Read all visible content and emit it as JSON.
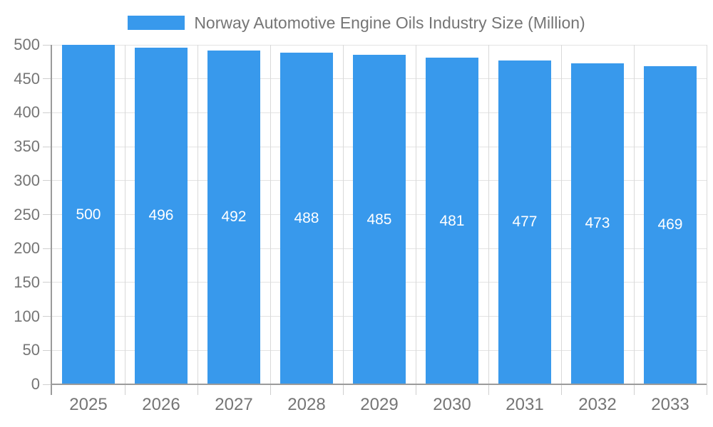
{
  "chart_data": {
    "type": "bar",
    "title": "",
    "legend": "Norway Automotive Engine Oils Industry Size (Million)",
    "legend_position": "top",
    "categories": [
      "2025",
      "2026",
      "2027",
      "2028",
      "2029",
      "2030",
      "2031",
      "2032",
      "2033"
    ],
    "values": [
      500,
      496,
      492,
      488,
      485,
      481,
      477,
      473,
      469
    ],
    "ylim": [
      0,
      500
    ],
    "yticks": [
      0,
      50,
      100,
      150,
      200,
      250,
      300,
      350,
      400,
      450,
      500
    ],
    "grid": true,
    "value_labels": "inside-center",
    "colors": {
      "bar": "#3899EC",
      "value_label_text": "#FFFFFF",
      "axis_text": "#757575",
      "axis_line": "#9B9B9B",
      "gridline_h": "#E3E3E3",
      "gridline_v": "#D9D9D9",
      "tick": "#CFCFCF",
      "background": "#FFFFFF"
    }
  }
}
